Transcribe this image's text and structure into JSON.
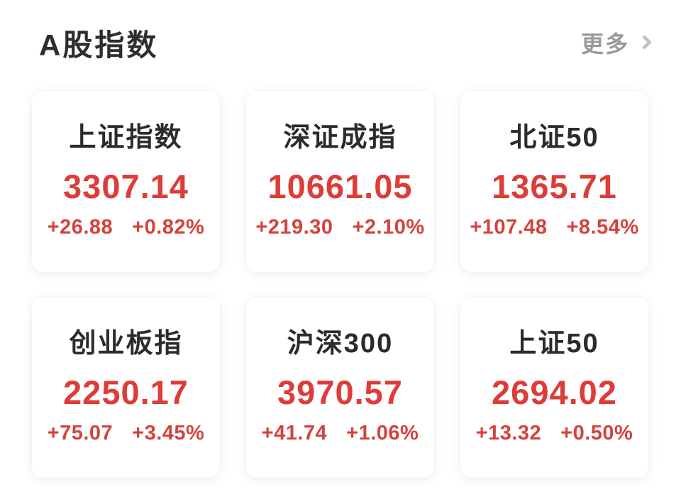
{
  "header": {
    "title": "A股指数",
    "more_label": "更多",
    "more_icon": "chevron-right-icon"
  },
  "colors": {
    "index_value_red": "#dd3c38",
    "index_change_red": "#d4423d",
    "title_dark": "#2d2d2d",
    "more_gray": "#9a9a9a",
    "chevron_gray": "#c2c2c2",
    "card_bg": "#ffffff",
    "page_bg": "#ffffff"
  },
  "indices": [
    {
      "name": "上证指数",
      "value": "3307.14",
      "change": "+26.88",
      "change_pct": "+0.82%"
    },
    {
      "name": "深证成指",
      "value": "10661.05",
      "change": "+219.30",
      "change_pct": "+2.10%"
    },
    {
      "name": "北证50",
      "value": "1365.71",
      "change": "+107.48",
      "change_pct": "+8.54%"
    },
    {
      "name": "创业板指",
      "value": "2250.17",
      "change": "+75.07",
      "change_pct": "+3.45%"
    },
    {
      "name": "沪深300",
      "value": "3970.57",
      "change": "+41.74",
      "change_pct": "+1.06%"
    },
    {
      "name": "上证50",
      "value": "2694.02",
      "change": "+13.32",
      "change_pct": "+0.50%"
    }
  ]
}
